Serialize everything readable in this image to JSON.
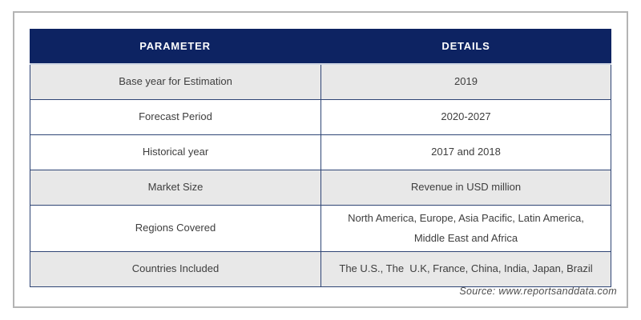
{
  "page": {
    "source_note": "Source: www.reportsanddata.com"
  },
  "colors": {
    "header_bg": "#0d2362",
    "header_text": "#ffffff",
    "row_shaded_bg": "#e8e8e8",
    "table_border": "#2f4575",
    "frame_border": "#b4b4b4",
    "body_text": "#3e3e3e",
    "source_text": "#4d4d4d"
  },
  "table": {
    "columns": [
      "PARAMETER",
      "DETAILS"
    ],
    "rows": [
      {
        "parameter": "Base year for Estimation",
        "detail": "2019",
        "shaded": true
      },
      {
        "parameter": "Forecast Period",
        "detail": "2020-2027",
        "shaded": false
      },
      {
        "parameter": "Historical year",
        "detail": "2017 and 2018",
        "shaded": false
      },
      {
        "parameter": "Market Size",
        "detail": "Revenue in USD million",
        "shaded": true
      },
      {
        "parameter": "Regions Covered",
        "detail": "North America, Europe, Asia Pacific, Latin America, Middle East and Africa",
        "shaded": false
      },
      {
        "parameter": "Countries Included",
        "detail": "The U.S., The  U.K, France, China, India, Japan, Brazil",
        "shaded": true
      }
    ]
  }
}
